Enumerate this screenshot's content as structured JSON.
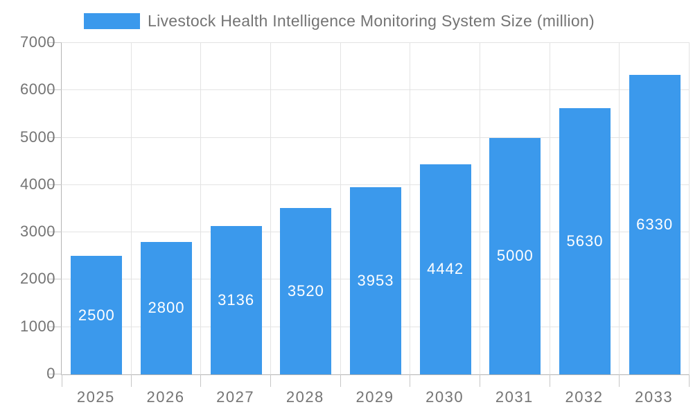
{
  "chart_data": {
    "type": "bar",
    "title": "Livestock Health Intelligence Monitoring System Size (million)",
    "legend": {
      "label": "Livestock Health Intelligence Monitoring System Size (million)",
      "position": "top"
    },
    "categories": [
      "2025",
      "2026",
      "2027",
      "2028",
      "2029",
      "2030",
      "2031",
      "2032",
      "2033"
    ],
    "series": [
      {
        "name": "Livestock Health Intelligence Monitoring System Size (million)",
        "values": [
          2500,
          2800,
          3136,
          3520,
          3953,
          4442,
          5000,
          5630,
          6330
        ]
      }
    ],
    "xlabel": "",
    "ylabel": "",
    "ylim": [
      0,
      7000
    ],
    "ytick_interval": 1000,
    "yticks": [
      0,
      1000,
      2000,
      3000,
      4000,
      5000,
      6000,
      7000
    ],
    "grid": true,
    "value_labels": "inside-center",
    "colors": {
      "bar": "#3b99ec",
      "value_label": "#ffffff",
      "axis_text": "#747474",
      "axis_line": "#b3b3b3",
      "grid_line": "#e3e3e3"
    }
  }
}
